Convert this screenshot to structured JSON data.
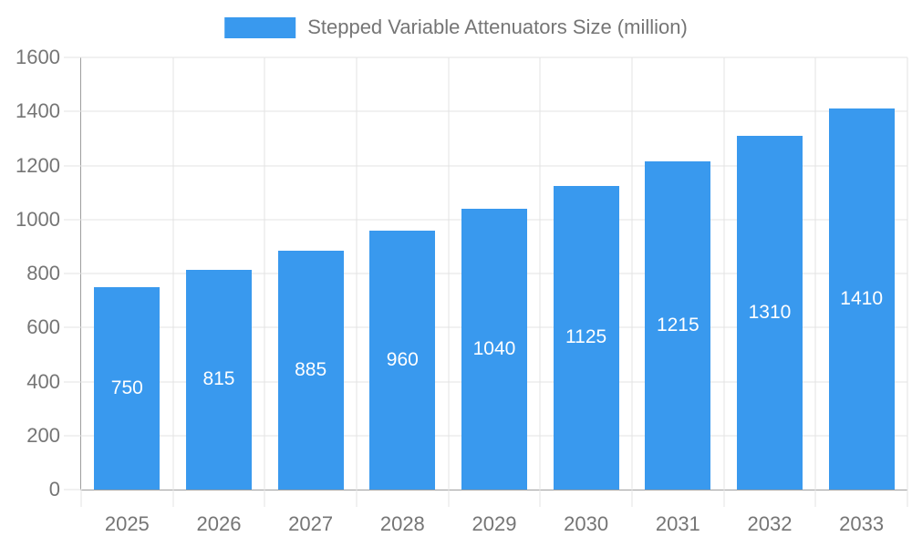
{
  "legend": {
    "label": "Stepped Variable Attenuators Size (million)"
  },
  "chart_data": {
    "type": "bar",
    "title": "Stepped Variable Attenuators Size (million)",
    "categories": [
      "2025",
      "2026",
      "2027",
      "2028",
      "2029",
      "2030",
      "2031",
      "2032",
      "2033"
    ],
    "series": [
      {
        "name": "Stepped Variable Attenuators Size (million)",
        "values": [
          750,
          815,
          885,
          960,
          1040,
          1125,
          1215,
          1310,
          1410
        ]
      }
    ],
    "values": [
      750,
      815,
      885,
      960,
      1040,
      1125,
      1215,
      1310,
      1410
    ],
    "data_labels_visible": true,
    "xlabel": "",
    "ylabel": "",
    "ylim": [
      0,
      1600
    ],
    "y_ticks": [
      0,
      200,
      400,
      600,
      800,
      1000,
      1200,
      1400,
      1600
    ],
    "grid": true,
    "legend_position": "top-center",
    "colors": {
      "bar": "#3999ee",
      "bar_value_label": "#ffffff",
      "axis_text": "#757575",
      "grid_line": "#e3e3e3",
      "axis_line": "#9e9e9e",
      "background": "#ffffff"
    }
  }
}
